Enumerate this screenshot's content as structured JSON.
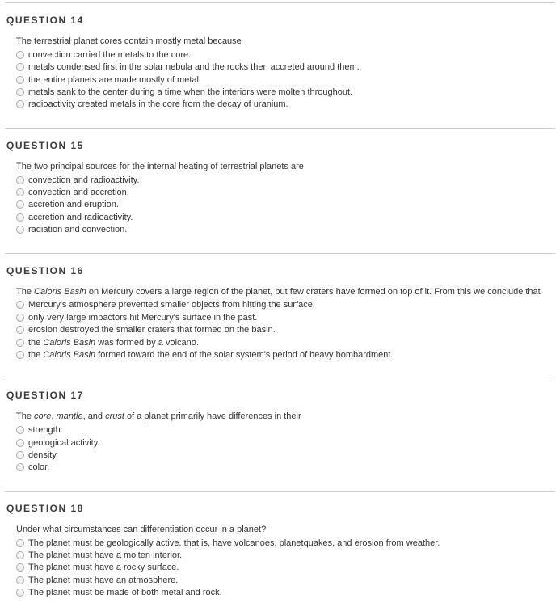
{
  "questions": [
    {
      "number": "QUESTION 14",
      "stem": "The terrestrial planet cores contain mostly metal because",
      "options": [
        "convection carried the metals to the core.",
        "metals condensed first in the solar nebula and the rocks then accreted around them.",
        "the entire planets are made mostly of metal.",
        "metals sank to the center during a time when the interiors were molten throughout.",
        "radioactivity created metals in the core from the decay of uranium."
      ]
    },
    {
      "number": "QUESTION 15",
      "stem": "The two principal sources for the internal heating of terrestrial planets are",
      "options": [
        "convection and radioactivity.",
        "convection and accretion.",
        "accretion and eruption.",
        "accretion and radioactivity.",
        "radiation and convection."
      ]
    },
    {
      "number": "QUESTION 16",
      "stem_html": "The <span class='italic'>Caloris Basin</span> on Mercury covers a large region of the planet, but few craters have formed on top of it. From this we conclude that",
      "options_html": [
        "Mercury's atmosphere prevented smaller objects from hitting the surface.",
        "only very large impactors hit Mercury's surface in the past.",
        "erosion destroyed the smaller craters that formed on the basin.",
        "the <span class='italic'>Caloris Basin</span> was formed by a volcano.",
        "the <span class='italic'>Caloris Basin</span> formed toward the end of the solar system's period of heavy bombardment."
      ]
    },
    {
      "number": "QUESTION 17",
      "stem_html": "The <span class='italic'>core</span>, <span class='italic'>mantle</span>, and <span class='italic'>crust</span> of a planet primarily have differences in their",
      "options": [
        "strength.",
        "geological activity.",
        "density.",
        "color."
      ]
    },
    {
      "number": "QUESTION 18",
      "stem": "Under what circumstances can differentiation occur in a planet?",
      "options": [
        "The planet must be geologically active, that is, have volcanoes, planetquakes, and erosion from weather.",
        "The planet must have a molten interior.",
        "The planet must have a rocky surface.",
        "The planet must have an atmosphere.",
        "The planet must be made of both metal and rock."
      ]
    }
  ]
}
